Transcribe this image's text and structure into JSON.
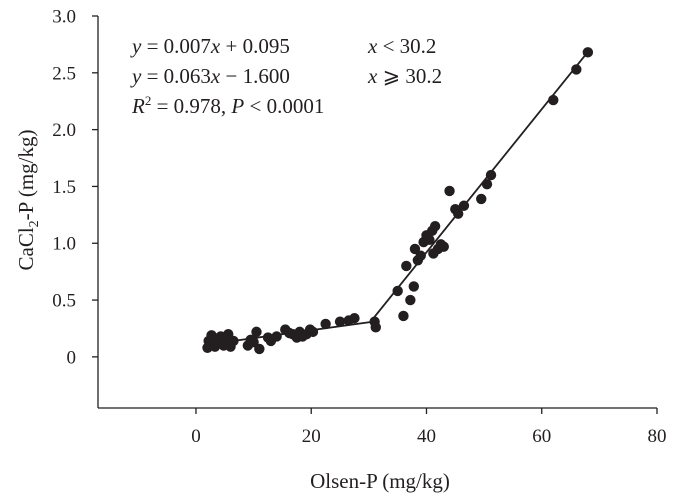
{
  "chart_data": {
    "type": "scatter",
    "xlabel": "Olsen-P (mg/kg)",
    "ylabel_parts": [
      "CaCl",
      "2",
      "-P (mg/kg)"
    ],
    "xlim": [
      -17,
      80
    ],
    "ylim": [
      -0.45,
      3.0
    ],
    "x_ticks": [
      0,
      20,
      40,
      60,
      80
    ],
    "y_ticks": [
      0,
      0.5,
      1.0,
      1.5,
      2.0,
      2.5,
      3.0
    ],
    "x_tick_labels": [
      "0",
      "20",
      "40",
      "60",
      "80"
    ],
    "y_tick_labels": [
      "0",
      "0.5",
      "1.0",
      "1.5",
      "2.0",
      "2.5",
      "3.0"
    ],
    "annotations": {
      "eq1": {
        "y": "y",
        "eq": " = 0.007",
        "x": "x",
        "rest": " + 0.095",
        "cond_x": "x",
        "cond": " <  30.2"
      },
      "eq2": {
        "y": "y",
        "eq": " = 0.063",
        "x": "x",
        "rest": " − 1.600",
        "cond_x": "x",
        "cond": " ⩾ 30.2"
      },
      "stats": {
        "r": "R",
        "sup": "2",
        "mid": " = 0.978, ",
        "p": "P",
        "end": " < 0.0001"
      }
    },
    "fit_segments": [
      {
        "x": [
          2,
          30.2
        ],
        "y": [
          0.109,
          0.306
        ]
      },
      {
        "x": [
          30.2,
          68
        ],
        "y": [
          0.303,
          2.684
        ]
      }
    ],
    "points": [
      [
        2.0,
        0.08
      ],
      [
        2.2,
        0.14
      ],
      [
        2.5,
        0.1
      ],
      [
        2.7,
        0.19
      ],
      [
        3.0,
        0.12
      ],
      [
        3.3,
        0.09
      ],
      [
        3.5,
        0.16
      ],
      [
        3.8,
        0.12
      ],
      [
        4.0,
        0.15
      ],
      [
        4.3,
        0.18
      ],
      [
        4.5,
        0.13
      ],
      [
        4.8,
        0.1
      ],
      [
        5.0,
        0.16
      ],
      [
        5.3,
        0.12
      ],
      [
        5.6,
        0.2
      ],
      [
        6.0,
        0.09
      ],
      [
        6.5,
        0.14
      ],
      [
        9.0,
        0.1
      ],
      [
        9.5,
        0.15
      ],
      [
        10.0,
        0.13
      ],
      [
        10.5,
        0.22
      ],
      [
        11.0,
        0.07
      ],
      [
        12.5,
        0.17
      ],
      [
        13.0,
        0.14
      ],
      [
        14.0,
        0.18
      ],
      [
        15.5,
        0.24
      ],
      [
        16.2,
        0.21
      ],
      [
        16.8,
        0.2
      ],
      [
        17.5,
        0.17
      ],
      [
        18.0,
        0.22
      ],
      [
        18.5,
        0.18
      ],
      [
        19.2,
        0.2
      ],
      [
        19.8,
        0.24
      ],
      [
        20.3,
        0.22
      ],
      [
        22.5,
        0.29
      ],
      [
        25.0,
        0.31
      ],
      [
        26.5,
        0.32
      ],
      [
        27.5,
        0.34
      ],
      [
        31.0,
        0.31
      ],
      [
        31.2,
        0.26
      ],
      [
        35.0,
        0.58
      ],
      [
        36.0,
        0.36
      ],
      [
        36.5,
        0.8
      ],
      [
        37.2,
        0.5
      ],
      [
        37.8,
        0.62
      ],
      [
        38.0,
        0.95
      ],
      [
        38.5,
        0.85
      ],
      [
        39.0,
        0.89
      ],
      [
        39.5,
        1.01
      ],
      [
        40.0,
        1.07
      ],
      [
        40.5,
        1.03
      ],
      [
        41.0,
        1.11
      ],
      [
        41.2,
        0.91
      ],
      [
        41.5,
        1.15
      ],
      [
        42.0,
        0.95
      ],
      [
        42.5,
        0.99
      ],
      [
        43.0,
        0.97
      ],
      [
        44.0,
        1.46
      ],
      [
        45.0,
        1.3
      ],
      [
        45.5,
        1.26
      ],
      [
        46.5,
        1.33
      ],
      [
        49.5,
        1.39
      ],
      [
        50.5,
        1.52
      ],
      [
        51.2,
        1.6
      ],
      [
        62.0,
        2.26
      ],
      [
        66.0,
        2.53
      ],
      [
        68.0,
        2.68
      ]
    ]
  }
}
